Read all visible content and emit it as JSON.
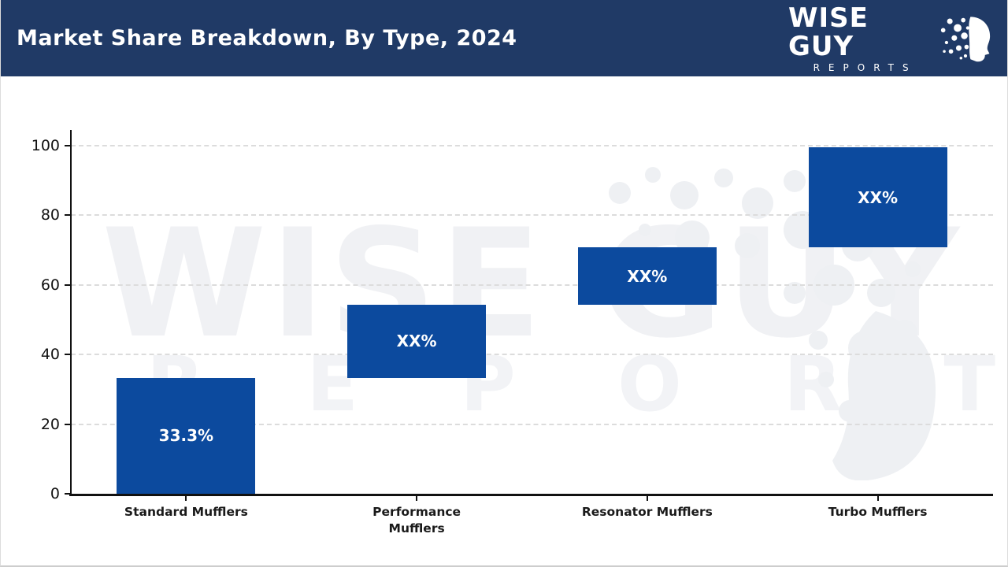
{
  "header": {
    "title": "Market Share Breakdown, By Type, 2024",
    "logo": {
      "line1": "WISE GUY",
      "line2": "REPORTS"
    }
  },
  "watermark": {
    "line1": "WISE GUY",
    "line2": "R E P O R T S"
  },
  "colors": {
    "header_bg": "#203a66",
    "bar": "#0c4a9e",
    "bar_label": "#ffffff",
    "gridline": "#dcdcdc",
    "axis": "#111111",
    "watermark": "#f0f1f4"
  },
  "chart_data": {
    "type": "bar",
    "subtype": "floating-waterfall",
    "title": "Market Share Breakdown, By Type, 2024",
    "categories": [
      "Standard Mufflers",
      "Performance\nMufflers",
      "Resonator Mufflers",
      "Turbo Mufflers"
    ],
    "bars": [
      {
        "category": "Standard Mufflers",
        "start": 0,
        "end": 33.3,
        "label": "33.3%"
      },
      {
        "category": "Performance Mufflers",
        "start": 33.3,
        "end": 54.3,
        "label": "XX%"
      },
      {
        "category": "Resonator Mufflers",
        "start": 54.3,
        "end": 70.8,
        "label": "XX%"
      },
      {
        "category": "Turbo Mufflers",
        "start": 70.8,
        "end": 99.5,
        "label": "XX%"
      }
    ],
    "ylim": [
      0,
      100
    ],
    "yticks": [
      0,
      20,
      40,
      60,
      80,
      100
    ],
    "xlabel": "",
    "ylabel": "",
    "grid": "horizontal-dashed",
    "legend": "none",
    "bar_color": "#0c4a9e",
    "bar_label_color": "#ffffff"
  }
}
